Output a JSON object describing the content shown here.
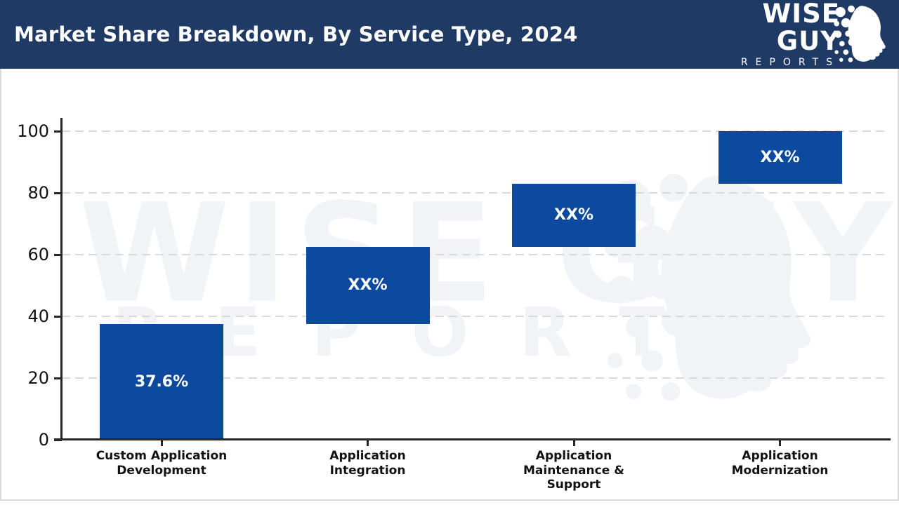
{
  "header": {
    "title": "Market Share Breakdown, By Service Type, 2024",
    "background_color": "#203a66",
    "logo": {
      "line1": "WISE GUY",
      "line2": "REPORTS"
    }
  },
  "watermark": {
    "line1": "WISE GUY",
    "line2": "REPORTS"
  },
  "chart_data": {
    "type": "bar",
    "variant": "waterfall",
    "title": "Market Share Breakdown, By Service Type, 2024",
    "categories": [
      "Custom Application Development",
      "Application Integration",
      "Application Maintenance & Support",
      "Application Modernization"
    ],
    "segments": [
      {
        "category": "Custom Application Development",
        "start": 0,
        "end": 37.6,
        "value": 37.6,
        "label": "37.6%"
      },
      {
        "category": "Application Integration",
        "start": 37.6,
        "end": 62.5,
        "value": 24.9,
        "label": "XX%"
      },
      {
        "category": "Application Maintenance & Support",
        "start": 62.5,
        "end": 83,
        "value": 20.5,
        "label": "XX%"
      },
      {
        "category": "Application Modernization",
        "start": 83,
        "end": 100,
        "value": 17,
        "label": "XX%"
      }
    ],
    "xlabel": "",
    "ylabel": "",
    "ylim": [
      0,
      100
    ],
    "yticks": [
      0,
      20,
      40,
      60,
      80,
      100
    ],
    "grid": "horizontal-dashed",
    "legend": "none",
    "bar_color": "#0b4a9e",
    "bar_label_color": "#ffffff",
    "axis_color": "#262626"
  }
}
